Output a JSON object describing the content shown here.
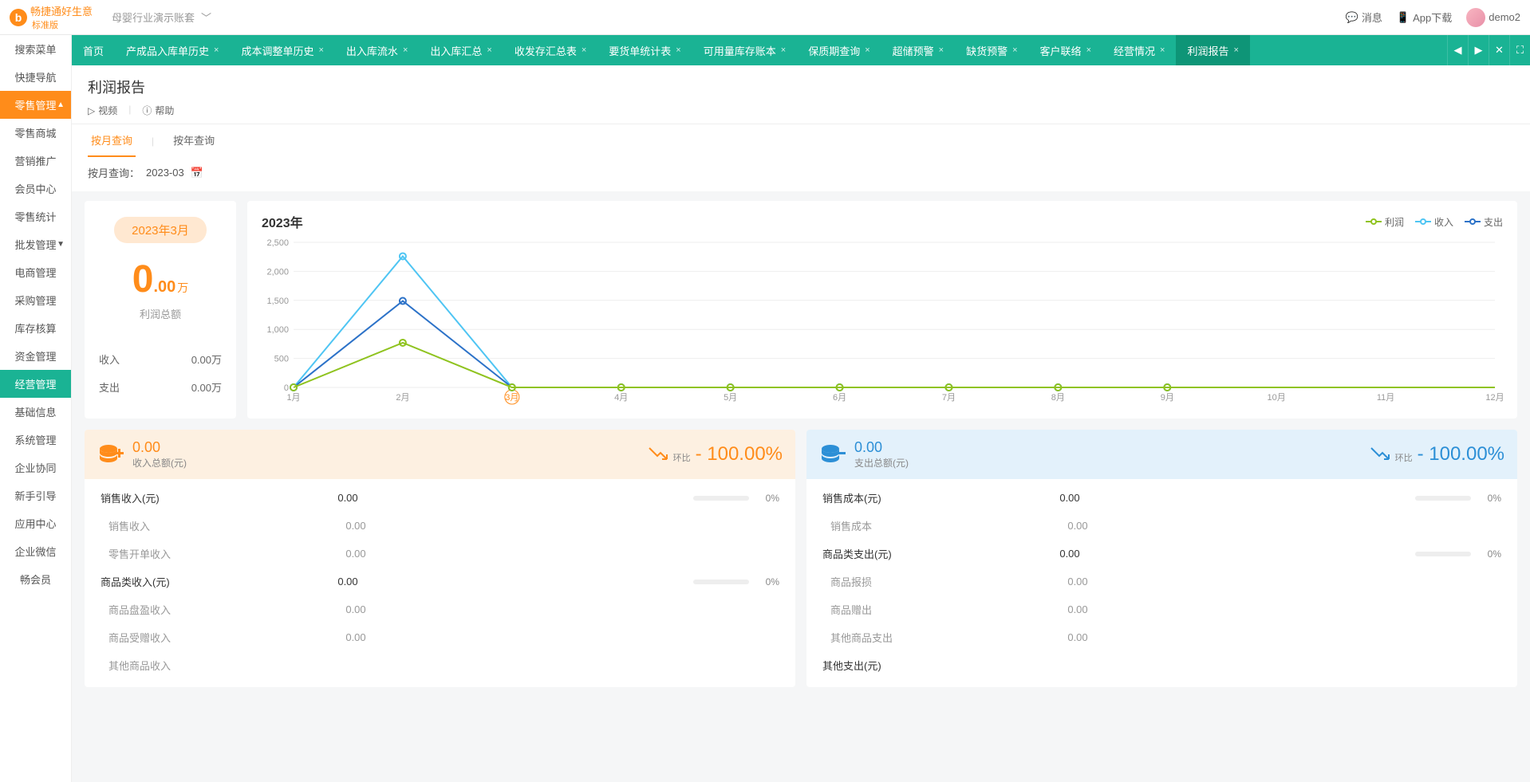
{
  "header": {
    "logo_text": "畅捷通好生意",
    "logo_sub": "标准版",
    "account_selector": "母婴行业演示账套",
    "msg": "消息",
    "app_dl": "App下载",
    "user": "demo2"
  },
  "tabs": [
    {
      "label": "首页",
      "closable": false
    },
    {
      "label": "产成品入库单历史",
      "closable": true
    },
    {
      "label": "成本调整单历史",
      "closable": true
    },
    {
      "label": "出入库流水",
      "closable": true
    },
    {
      "label": "出入库汇总",
      "closable": true
    },
    {
      "label": "收发存汇总表",
      "closable": true
    },
    {
      "label": "要货单统计表",
      "closable": true
    },
    {
      "label": "可用量库存账本",
      "closable": true
    },
    {
      "label": "保质期查询",
      "closable": true
    },
    {
      "label": "超储预警",
      "closable": true
    },
    {
      "label": "缺货预警",
      "closable": true
    },
    {
      "label": "客户联络",
      "closable": true
    },
    {
      "label": "经营情况",
      "closable": true
    },
    {
      "label": "利润报告",
      "closable": true,
      "active": true
    }
  ],
  "sidebar": [
    {
      "label": "搜索菜单"
    },
    {
      "label": "快捷导航"
    },
    {
      "label": "零售管理",
      "style": "orange",
      "caret": "▲"
    },
    {
      "label": "零售商城"
    },
    {
      "label": "营销推广"
    },
    {
      "label": "会员中心"
    },
    {
      "label": "零售统计"
    },
    {
      "label": "批发管理",
      "caret": "▼"
    },
    {
      "label": "电商管理"
    },
    {
      "label": "采购管理"
    },
    {
      "label": "库存核算"
    },
    {
      "label": "资金管理"
    },
    {
      "label": "经营管理",
      "style": "teal"
    },
    {
      "label": "基础信息"
    },
    {
      "label": "系统管理"
    },
    {
      "label": "企业协同"
    },
    {
      "label": "新手引导"
    },
    {
      "label": "应用中心"
    },
    {
      "label": "企业微信"
    },
    {
      "label": "畅会员"
    }
  ],
  "page": {
    "title": "利润报告",
    "video": "视频",
    "help": "帮助"
  },
  "query_tabs": {
    "by_month": "按月查询",
    "by_year": "按年查询"
  },
  "query": {
    "label": "按月查询：",
    "value": "2023-03"
  },
  "summary": {
    "month_label": "2023年3月",
    "profit_int": "0",
    "profit_dec": ".00",
    "profit_unit": "万",
    "profit_label": "利润总额",
    "income_label": "收入",
    "income_value": "0.00万",
    "expense_label": "支出",
    "expense_value": "0.00万"
  },
  "chart": {
    "title": "2023年",
    "legend": {
      "profit": "利润",
      "income": "收入",
      "expense": "支出"
    },
    "colors": {
      "profit": "#8fc31f",
      "income": "#4fc5f3",
      "expense": "#2c72c8",
      "grid": "#eeeeee",
      "axis": "#cccccc",
      "label": "#999999",
      "highlight": "#ff8c1a"
    },
    "x_labels": [
      "1月",
      "2月",
      "3月",
      "4月",
      "5月",
      "6月",
      "7月",
      "8月",
      "9月",
      "10月",
      "11月",
      "12月"
    ],
    "x_highlight_index": 2,
    "y_max": 2500,
    "y_step": 500,
    "series": {
      "profit": [
        0,
        770,
        0,
        0,
        0,
        0,
        0,
        0,
        0,
        0,
        0,
        0
      ],
      "income": [
        0,
        2260,
        0,
        0,
        0,
        0,
        0,
        0,
        0,
        0,
        0,
        0
      ],
      "expense": [
        0,
        1490,
        0,
        0,
        0,
        0,
        0,
        0,
        0,
        0,
        0,
        0
      ]
    },
    "visible_points": 9
  },
  "income_panel": {
    "amount": "0.00",
    "label": "收入总额(元)",
    "delta_label": "环比",
    "delta_pct": "- 100.00%",
    "rows": [
      {
        "name": "销售收入(元)",
        "val": "0.00",
        "bar": true,
        "pct": "0%"
      },
      {
        "name": "销售收入",
        "val": "0.00",
        "sub": true
      },
      {
        "name": "零售开单收入",
        "val": "0.00",
        "sub": true
      },
      {
        "name": "商品类收入(元)",
        "val": "0.00",
        "bar": true,
        "pct": "0%"
      },
      {
        "name": "商品盘盈收入",
        "val": "0.00",
        "sub": true
      },
      {
        "name": "商品受赠收入",
        "val": "0.00",
        "sub": true
      },
      {
        "name": "其他商品收入",
        "val": "",
        "sub": true
      }
    ]
  },
  "expense_panel": {
    "amount": "0.00",
    "label": "支出总额(元)",
    "delta_label": "环比",
    "delta_pct": "- 100.00%",
    "rows": [
      {
        "name": "销售成本(元)",
        "val": "0.00",
        "bar": true,
        "pct": "0%"
      },
      {
        "name": "销售成本",
        "val": "0.00",
        "sub": true
      },
      {
        "name": "商品类支出(元)",
        "val": "0.00",
        "bar": true,
        "pct": "0%"
      },
      {
        "name": "商品报损",
        "val": "0.00",
        "sub": true
      },
      {
        "name": "商品赠出",
        "val": "0.00",
        "sub": true
      },
      {
        "name": "其他商品支出",
        "val": "0.00",
        "sub": true
      },
      {
        "name": "其他支出(元)",
        "val": "",
        "sub": false
      }
    ]
  }
}
